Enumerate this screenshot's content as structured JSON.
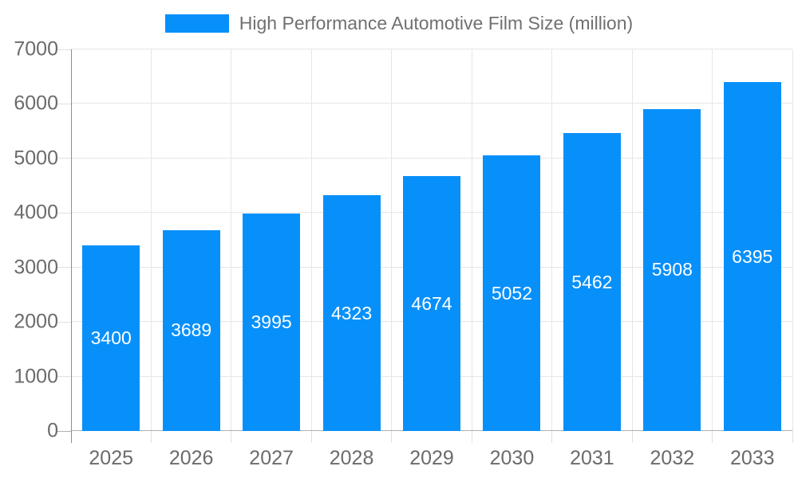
{
  "legend": {
    "label": "High Performance Automotive Film Size (million)"
  },
  "chart_data": {
    "type": "bar",
    "title": "High Performance Automotive Film Size (million)",
    "series_name": "High Performance Automotive Film Size (million)",
    "categories": [
      "2025",
      "2026",
      "2027",
      "2028",
      "2029",
      "2030",
      "2031",
      "2032",
      "2033"
    ],
    "values": [
      3400,
      3689,
      3995,
      4323,
      4674,
      5052,
      5462,
      5908,
      6395
    ],
    "xlabel": "",
    "ylabel": "",
    "ylim": [
      0,
      7000
    ],
    "yticks": [
      0,
      1000,
      2000,
      3000,
      4000,
      5000,
      6000,
      7000
    ],
    "grid": true,
    "legend_position": "top",
    "value_label_position": "inside-center",
    "colors": {
      "bar": "#0890fa",
      "grid": "#e6e6e6",
      "axis_left": "#8f8f8f",
      "axis_bottom": "#b0b0b0",
      "tick": "#e0e0e0",
      "axis_text": "#6b6b6b",
      "legend_text": "#707070",
      "value_text": "#ffffff",
      "background": "#ffffff"
    }
  }
}
